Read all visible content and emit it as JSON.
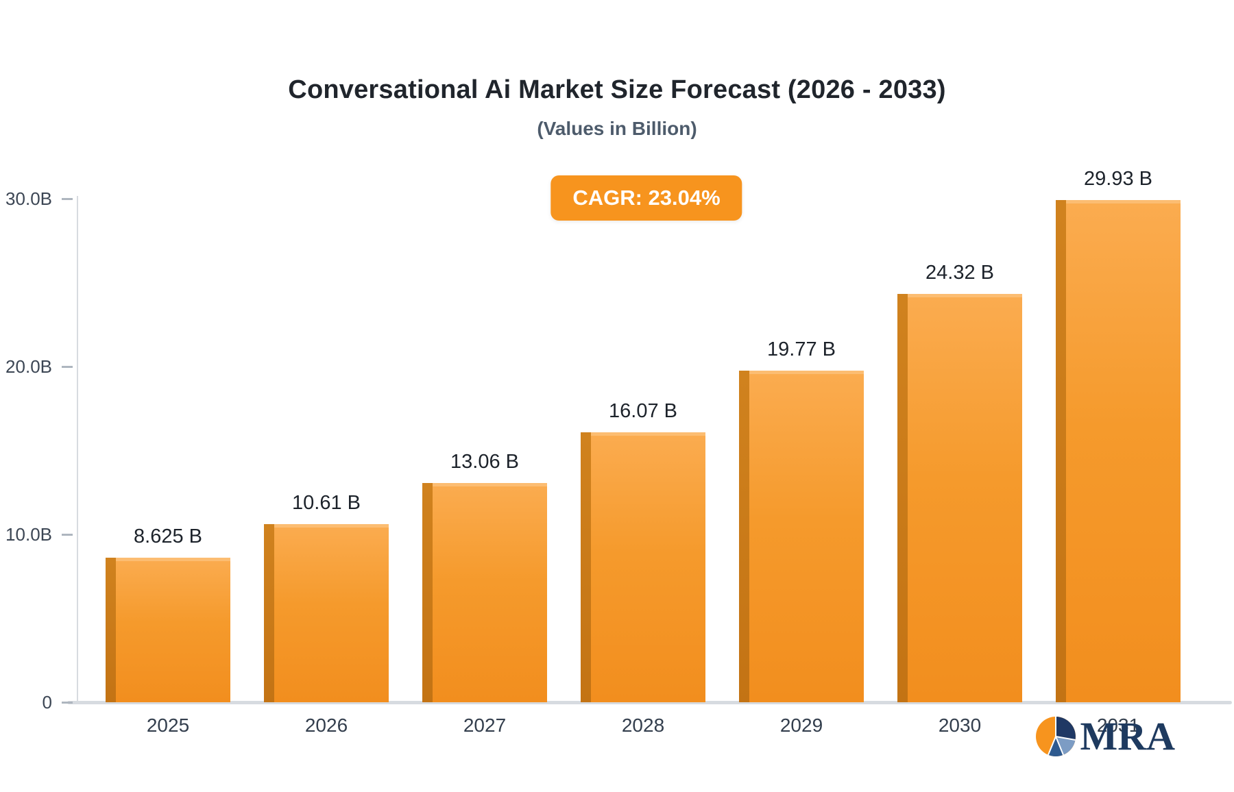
{
  "header": {
    "title": "Conversational Ai Market Size Forecast (2026 - 2033)",
    "subtitle": "(Values in Billion)"
  },
  "badge": {
    "label": "CAGR: 23.04%"
  },
  "logo": {
    "text": "MRA"
  },
  "colors": {
    "bar_main": "#F7941E",
    "bar_edge": "#C37314",
    "badge_bg": "#F7941E",
    "badge_text": "#FFFFFF",
    "logo_navy": "#1E3A5F",
    "axis_gray": "#D7DBE0"
  },
  "chart_data": {
    "type": "bar",
    "title": "Conversational Ai Market Size Forecast (2026 - 2033)",
    "subtitle": "(Values in Billion)",
    "categories": [
      "2025",
      "2026",
      "2027",
      "2028",
      "2029",
      "2030",
      "2031"
    ],
    "values": [
      8.625,
      10.61,
      13.06,
      16.07,
      19.77,
      24.32,
      29.93
    ],
    "value_labels": [
      "8.625 B",
      "10.61 B",
      "13.06 B",
      "16.07 B",
      "19.77 B",
      "24.32 B",
      "29.93 B"
    ],
    "xlabel": "",
    "ylabel": "",
    "ylim": [
      0,
      30
    ],
    "yticks": [
      {
        "value": 30,
        "label": "30.0B"
      },
      {
        "value": 20,
        "label": "20.0B"
      },
      {
        "value": 10,
        "label": "10.0B"
      },
      {
        "value": 0,
        "label": "0"
      }
    ],
    "grid": false,
    "legend": false,
    "annotation": "CAGR: 23.04%"
  }
}
